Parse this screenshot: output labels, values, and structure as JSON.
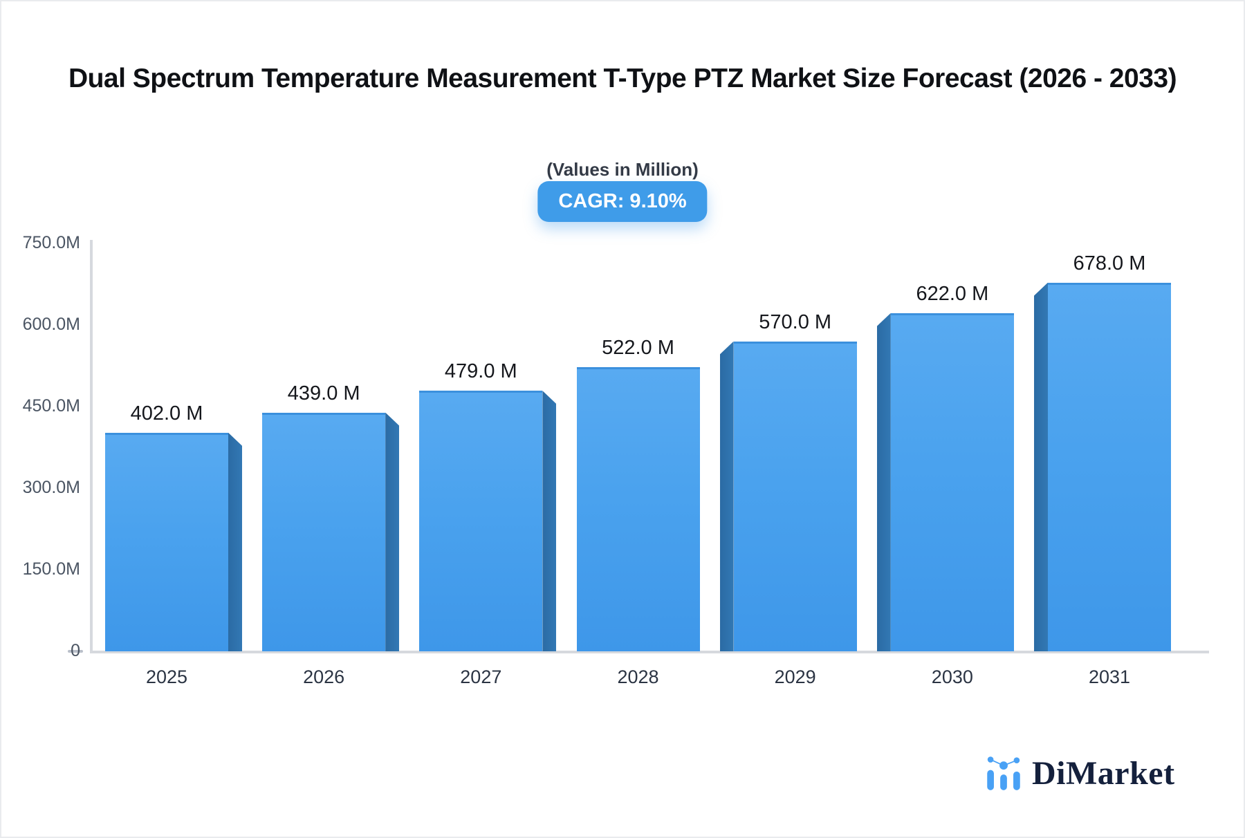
{
  "header": {
    "title": "Dual Spectrum Temperature Measurement T-Type PTZ Market Size Forecast (2026 - 2033)",
    "subtitle": "(Values in Million)",
    "cagr_badge": "CAGR: 9.10%"
  },
  "chart_data": {
    "type": "bar",
    "title": "Dual Spectrum Temperature Measurement T-Type PTZ Market Size Forecast (2026 - 2033)",
    "subtitle": "(Values in Million)",
    "unit": "Million",
    "cagr_percent": 9.1,
    "categories": [
      "2025",
      "2026",
      "2027",
      "2028",
      "2029",
      "2030",
      "2031"
    ],
    "values": [
      402.0,
      439.0,
      479.0,
      522.0,
      570.0,
      622.0,
      678.0
    ],
    "bar_labels": [
      "402.0 M",
      "439.0 M",
      "479.0 M",
      "522.0 M",
      "570.0 M",
      "622.0 M",
      "678.0 M"
    ],
    "y_ticks": [
      {
        "value": 750,
        "label": "750.0M"
      },
      {
        "value": 600,
        "label": "600.0M"
      },
      {
        "value": 450,
        "label": "450.0M"
      },
      {
        "value": 300,
        "label": "300.0M"
      },
      {
        "value": 150,
        "label": "150.0M"
      },
      {
        "value": 0,
        "label": "0"
      }
    ],
    "ylim": [
      0,
      750
    ],
    "xlabel": "",
    "ylabel": "",
    "grid": "off",
    "legend": "none",
    "bar_style": "3d-extruded"
  },
  "footer": {
    "brand": "DiMarket"
  },
  "colors": {
    "accent_badge": "#3f9ce9",
    "bar_front_top": "#58aaf1",
    "bar_front_bottom": "#3e97e9",
    "bar_side_dark": "#2e72ad",
    "axis_line": "#d6d9de",
    "y_tick_text": "#4b5563",
    "x_tick_text": "#2b3443",
    "title_text": "#0f1115",
    "brand_navy": "#14203c",
    "logo_blue": "#49a1f5"
  }
}
